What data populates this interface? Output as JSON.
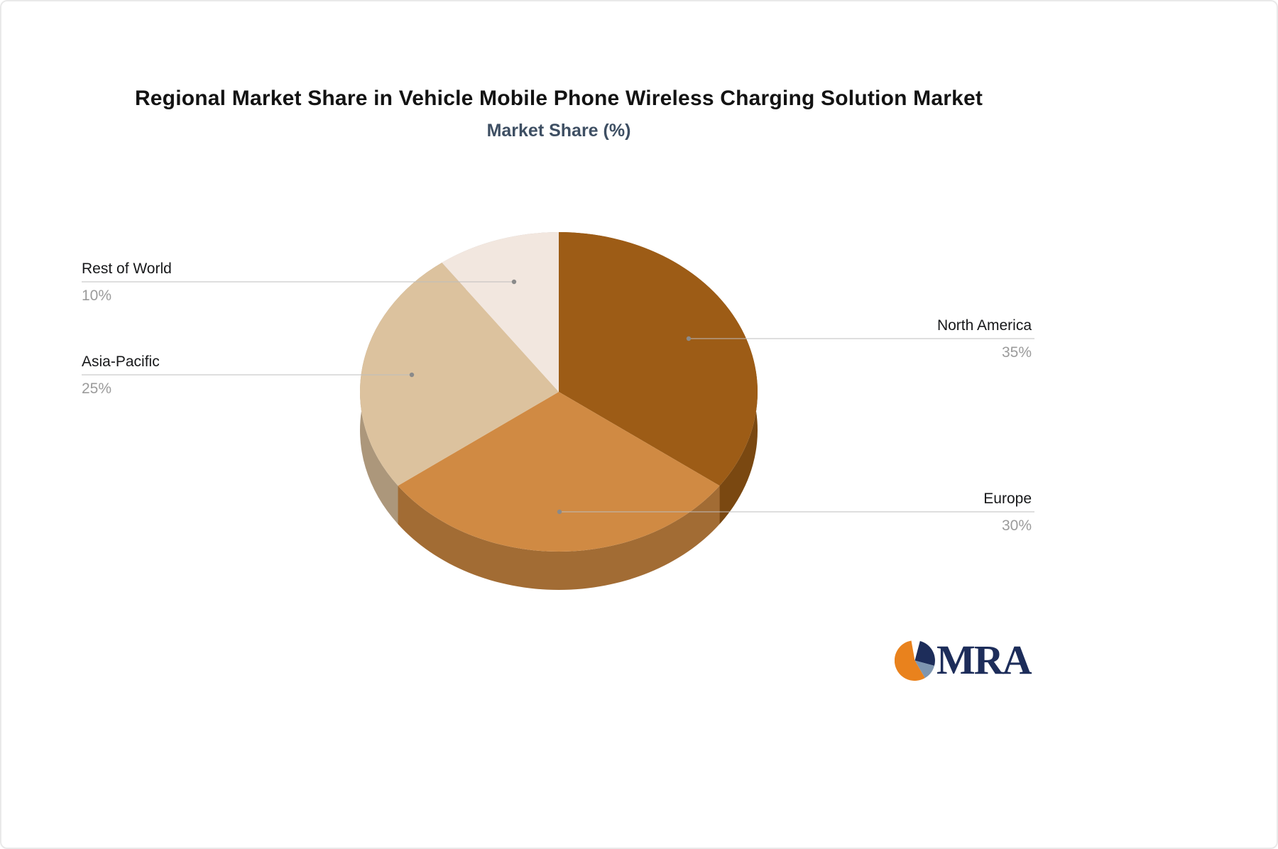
{
  "chart_data": {
    "type": "pie",
    "title": "Regional Market Share in Vehicle Mobile Phone Wireless Charging Solution Market",
    "subtitle": "Market Share (%)",
    "unit": "%",
    "style": "3d",
    "start_angle": "top",
    "direction": "clockwise",
    "legend_position": "none",
    "categories": [
      "North America",
      "Europe",
      "Asia-Pacific",
      "Rest of World"
    ],
    "values": [
      35,
      30,
      25,
      10
    ],
    "colors": [
      "#9d5c16",
      "#d08a43",
      "#dcc29e",
      "#f2e7df"
    ],
    "callouts": [
      {
        "name": "North America",
        "value": "35%",
        "side": "right"
      },
      {
        "name": "Europe",
        "value": "30%",
        "side": "right"
      },
      {
        "name": "Asia-Pacific",
        "value": "25%",
        "side": "left"
      },
      {
        "name": "Rest of World",
        "value": "10%",
        "side": "left"
      }
    ]
  },
  "logo": {
    "text": "MRA",
    "colors": {
      "navy": "#1d2d5a",
      "orange": "#e9821d",
      "steel": "#7e96b0"
    }
  }
}
